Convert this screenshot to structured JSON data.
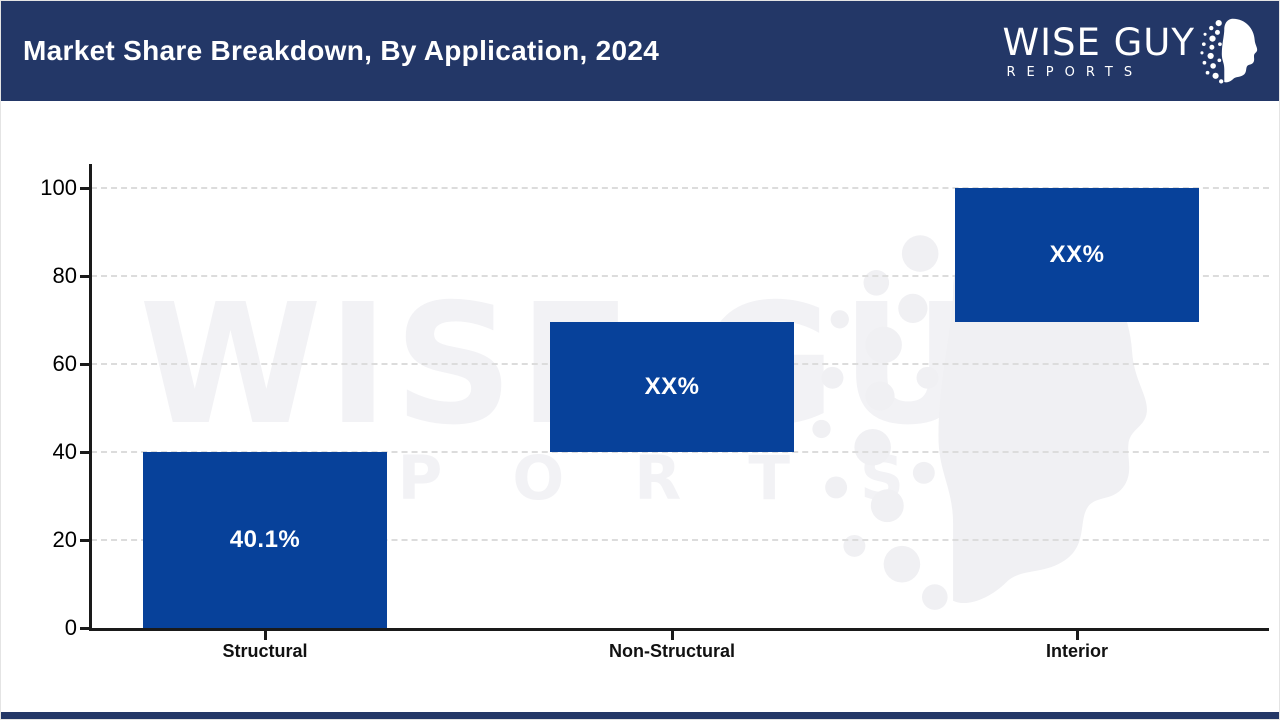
{
  "header": {
    "title": "Market Share Breakdown, By Application, 2024",
    "bg_color": "#233767",
    "logo": {
      "line1": "WISE GUY",
      "line2": "REPORTS"
    }
  },
  "watermark": {
    "line1": "WISE GUY",
    "line2": "REPORTS"
  },
  "chart_data": {
    "type": "bar",
    "subtype": "waterfall",
    "title": "Market Share Breakdown, By Application, 2024",
    "xlabel": "",
    "ylabel": "",
    "categories": [
      "Structural",
      "Non-Structural",
      "Interior"
    ],
    "segments": [
      {
        "category": "Structural",
        "start": 0,
        "end": 40.1,
        "label": "40.1%"
      },
      {
        "category": "Non-Structural",
        "start": 40.1,
        "end": 69.5,
        "label": "XX%"
      },
      {
        "category": "Interior",
        "start": 69.5,
        "end": 100,
        "label": "XX%"
      }
    ],
    "y_ticks": [
      0,
      20,
      40,
      60,
      80,
      100
    ],
    "ylim": [
      0,
      105.5
    ],
    "grid": "horizontal-dashed",
    "legend": "none",
    "bar_color": "#07419a",
    "grid_color": "#dcdcdc",
    "axis_color": "#1a1a1a",
    "label_color": "#ffffff"
  }
}
